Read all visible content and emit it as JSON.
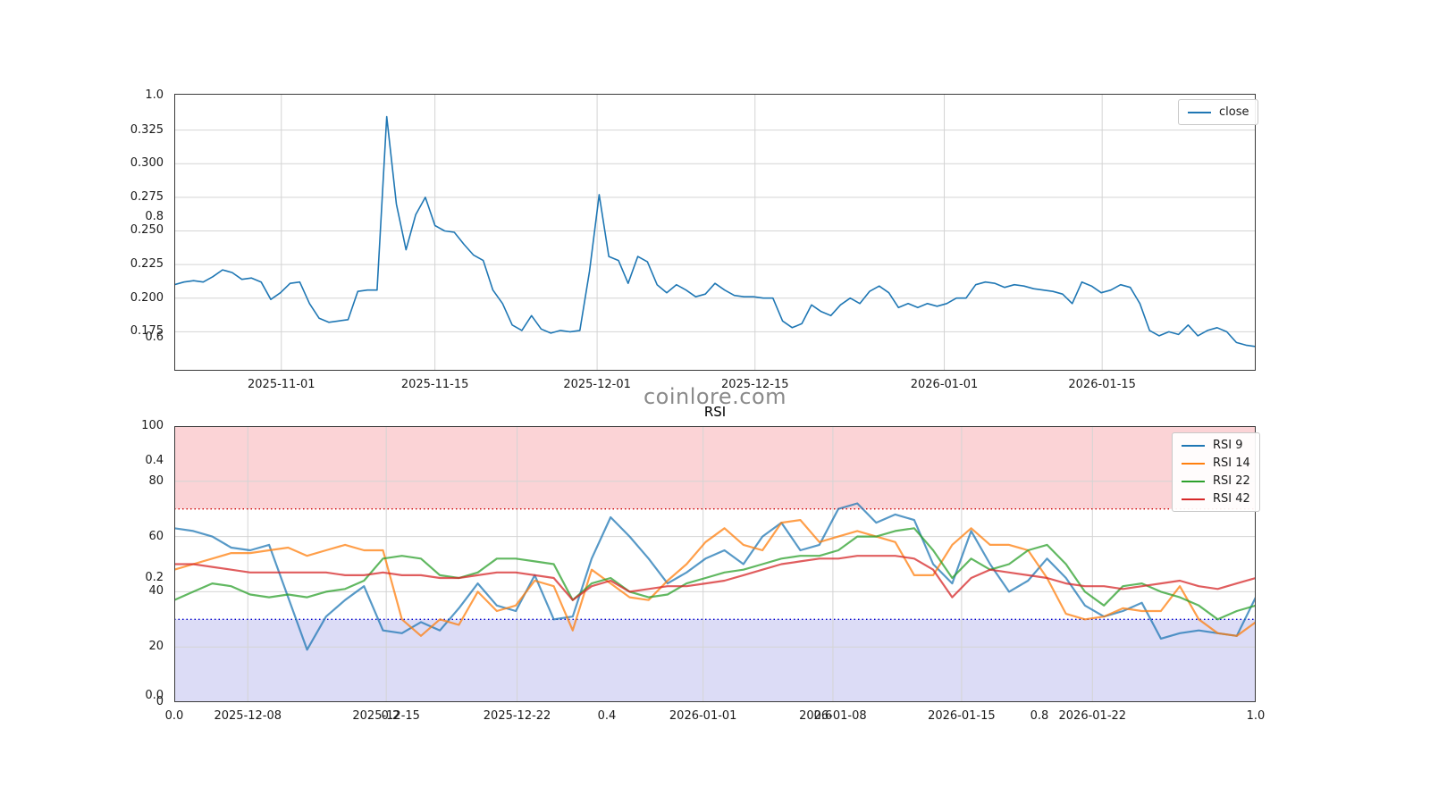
{
  "watermark": "coinlore.com",
  "chart_data": [
    {
      "type": "line",
      "title": "",
      "legend_label": "close",
      "series_color": "#1f77b4",
      "grid": true,
      "legend_position": "upper right",
      "ylim": [
        0.146,
        0.352
      ],
      "yticks": [
        0.175,
        0.2,
        0.225,
        0.25,
        0.275,
        0.3,
        0.325
      ],
      "secondary_yticks": [
        {
          "label": "1.0",
          "y": 2
        },
        {
          "label": "0.8",
          "y": 138
        },
        {
          "label": "0.6",
          "y": 273
        }
      ],
      "xticks": [
        {
          "label": "2025-11-01",
          "pos": 0.099
        },
        {
          "label": "2025-11-15",
          "pos": 0.241
        },
        {
          "label": "2025-12-01",
          "pos": 0.391
        },
        {
          "label": "2025-12-15",
          "pos": 0.537
        },
        {
          "label": "2026-01-01",
          "pos": 0.712
        },
        {
          "label": "2026-01-15",
          "pos": 0.858
        }
      ],
      "values": [
        0.21,
        0.212,
        0.213,
        0.212,
        0.216,
        0.221,
        0.219,
        0.214,
        0.215,
        0.212,
        0.199,
        0.204,
        0.211,
        0.212,
        0.196,
        0.185,
        0.182,
        0.183,
        0.184,
        0.205,
        0.206,
        0.206,
        0.335,
        0.27,
        0.236,
        0.262,
        0.275,
        0.254,
        0.25,
        0.249,
        0.24,
        0.232,
        0.228,
        0.206,
        0.196,
        0.18,
        0.176,
        0.187,
        0.177,
        0.174,
        0.176,
        0.175,
        0.176,
        0.22,
        0.277,
        0.231,
        0.228,
        0.211,
        0.231,
        0.227,
        0.21,
        0.204,
        0.21,
        0.206,
        0.201,
        0.203,
        0.211,
        0.206,
        0.202,
        0.201,
        0.201,
        0.2,
        0.2,
        0.183,
        0.178,
        0.181,
        0.195,
        0.19,
        0.187,
        0.195,
        0.2,
        0.196,
        0.205,
        0.209,
        0.204,
        0.193,
        0.196,
        0.193,
        0.196,
        0.194,
        0.196,
        0.2,
        0.2,
        0.21,
        0.212,
        0.211,
        0.208,
        0.21,
        0.209,
        0.207,
        0.206,
        0.205,
        0.203,
        0.196,
        0.212,
        0.209,
        0.204,
        0.206,
        0.21,
        0.208,
        0.196,
        0.176,
        0.172,
        0.175,
        0.173,
        0.18,
        0.172,
        0.176,
        0.178,
        0.175,
        0.167,
        0.165,
        0.164
      ]
    },
    {
      "type": "line",
      "title": "RSI",
      "grid": true,
      "legend_position": "upper right",
      "ylim": [
        0,
        100
      ],
      "yticks": [
        0,
        20,
        40,
        60,
        80,
        100
      ],
      "secondary_yticks": [
        {
          "label": "0.4",
          "y": 39
        },
        {
          "label": "0.2",
          "y": 170
        },
        {
          "label": "0.0",
          "y": 302
        }
      ],
      "xticks": [
        {
          "label": "2025-12-08",
          "pos": 0.068
        },
        {
          "label": "2025-12-15",
          "pos": 0.196
        },
        {
          "label": "2025-12-22",
          "pos": 0.317
        },
        {
          "label": "2026-01-01",
          "pos": 0.489
        },
        {
          "label": "2026-01-08",
          "pos": 0.609
        },
        {
          "label": "2026-01-15",
          "pos": 0.728
        },
        {
          "label": "2026-01-22",
          "pos": 0.849
        }
      ],
      "secondary_xticks": [
        {
          "label": "0.0",
          "pos": 0.0
        },
        {
          "label": "0.2",
          "pos": 0.2
        },
        {
          "label": "0.4",
          "pos": 0.4
        },
        {
          "label": "0.6",
          "pos": 0.6
        },
        {
          "label": "0.8",
          "pos": 0.8
        },
        {
          "label": "1.0",
          "pos": 1.0
        }
      ],
      "bands": [
        {
          "from": 70,
          "to": 100,
          "color": "#fbd3d6",
          "meaning": "overbought zone"
        },
        {
          "from": 0,
          "to": 30,
          "color": "#dcdcf6",
          "meaning": "oversold zone"
        }
      ],
      "threshold_lines": [
        {
          "value": 70,
          "color": "#cc0000"
        },
        {
          "value": 30,
          "color": "#0000cc"
        }
      ],
      "series": [
        {
          "name": "RSI 9",
          "color": "#1f77b4",
          "values": [
            63,
            62,
            60,
            56,
            55,
            57,
            38,
            19,
            31,
            37,
            42,
            26,
            25,
            29,
            26,
            34,
            43,
            35,
            33,
            46,
            30,
            31,
            52,
            67,
            60,
            52,
            43,
            47,
            52,
            55,
            50,
            60,
            65,
            55,
            57,
            70,
            72,
            65,
            68,
            66,
            50,
            43,
            62,
            50,
            40,
            44,
            52,
            45,
            35,
            31,
            33,
            36,
            23,
            25,
            26,
            25,
            24,
            38
          ]
        },
        {
          "name": "RSI 14",
          "color": "#ff7f0e",
          "values": [
            48,
            50,
            52,
            54,
            54,
            55,
            56,
            53,
            55,
            57,
            55,
            55,
            30,
            24,
            30,
            28,
            40,
            33,
            35,
            44,
            42,
            26,
            48,
            43,
            38,
            37,
            44,
            50,
            58,
            63,
            57,
            55,
            65,
            66,
            58,
            60,
            62,
            60,
            58,
            46,
            46,
            57,
            63,
            57,
            57,
            55,
            45,
            32,
            30,
            31,
            34,
            33,
            33,
            42,
            30,
            25,
            24,
            29
          ]
        },
        {
          "name": "RSI 22",
          "color": "#2ca02c",
          "values": [
            37,
            40,
            43,
            42,
            39,
            38,
            39,
            38,
            40,
            41,
            44,
            52,
            53,
            52,
            46,
            45,
            47,
            52,
            52,
            51,
            50,
            37,
            43,
            45,
            40,
            38,
            39,
            43,
            45,
            47,
            48,
            50,
            52,
            53,
            53,
            55,
            60,
            60,
            62,
            63,
            55,
            45,
            52,
            48,
            50,
            55,
            57,
            50,
            40,
            35,
            42,
            43,
            40,
            38,
            35,
            30,
            33,
            35
          ]
        },
        {
          "name": "RSI 42",
          "color": "#d62728",
          "values": [
            50,
            50,
            49,
            48,
            47,
            47,
            47,
            47,
            47,
            46,
            46,
            47,
            46,
            46,
            45,
            45,
            46,
            47,
            47,
            46,
            45,
            37,
            42,
            44,
            40,
            41,
            42,
            42,
            43,
            44,
            46,
            48,
            50,
            51,
            52,
            52,
            53,
            53,
            53,
            52,
            48,
            38,
            45,
            48,
            47,
            46,
            45,
            43,
            42,
            42,
            41,
            42,
            43,
            44,
            42,
            41,
            43,
            45
          ]
        }
      ]
    }
  ]
}
